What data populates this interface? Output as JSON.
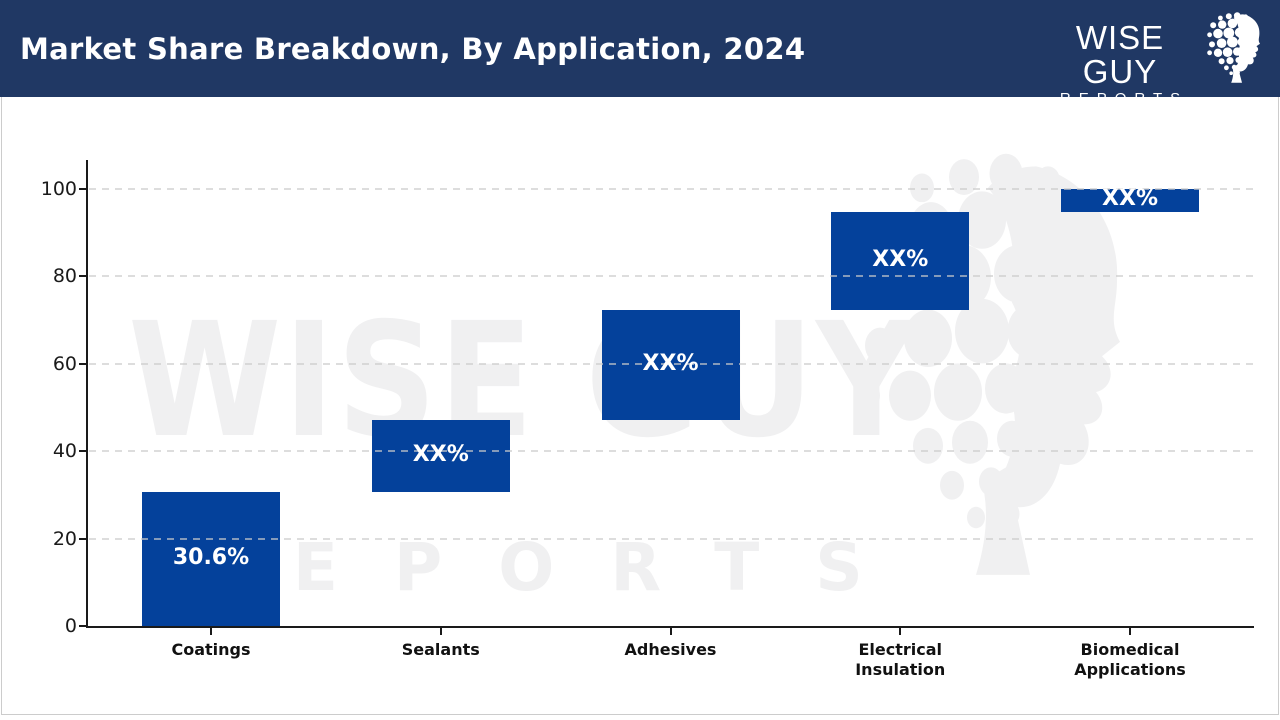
{
  "header": {
    "title": "Market Share Breakdown, By Application, 2024",
    "background": "#203864",
    "text_color": "#ffffff"
  },
  "logo": {
    "line1": "WISE GUY",
    "line2": "REPORTS",
    "head_icon": "dotted-head-profile"
  },
  "watermark": {
    "line1": "WISE GUY",
    "line2": "REPORTS",
    "head_icon": "dotted-head-profile"
  },
  "chart_data": {
    "type": "bar",
    "subtype": "waterfall",
    "title": "Market Share Breakdown, By Application, 2024",
    "categories": [
      "Coatings",
      "Sealants",
      "Adhesives",
      "Electrical\nInsulation",
      "Biomedical\nApplications"
    ],
    "segments": [
      {
        "category": "Coatings",
        "start": 0,
        "end": 30.6,
        "label": "30.6%"
      },
      {
        "category": "Sealants",
        "start": 30.6,
        "end": 47.1,
        "label": "XX%"
      },
      {
        "category": "Adhesives",
        "start": 47.1,
        "end": 72.2,
        "label": "XX%"
      },
      {
        "category": "Electrical Insulation",
        "start": 72.2,
        "end": 94.6,
        "label": "XX%"
      },
      {
        "category": "Biomedical Applications",
        "start": 94.6,
        "end": 100,
        "label": "XX%"
      }
    ],
    "ylim": [
      0,
      105
    ],
    "yticks": [
      0,
      20,
      40,
      60,
      80,
      100
    ],
    "grid": "horizontal-dashed-over-bars",
    "legend": "none",
    "bar_color": "#04419B",
    "bar_label_color": "#ffffff",
    "axis_color": "#1a1a1a",
    "gridline_color": "#d2d2d2"
  }
}
